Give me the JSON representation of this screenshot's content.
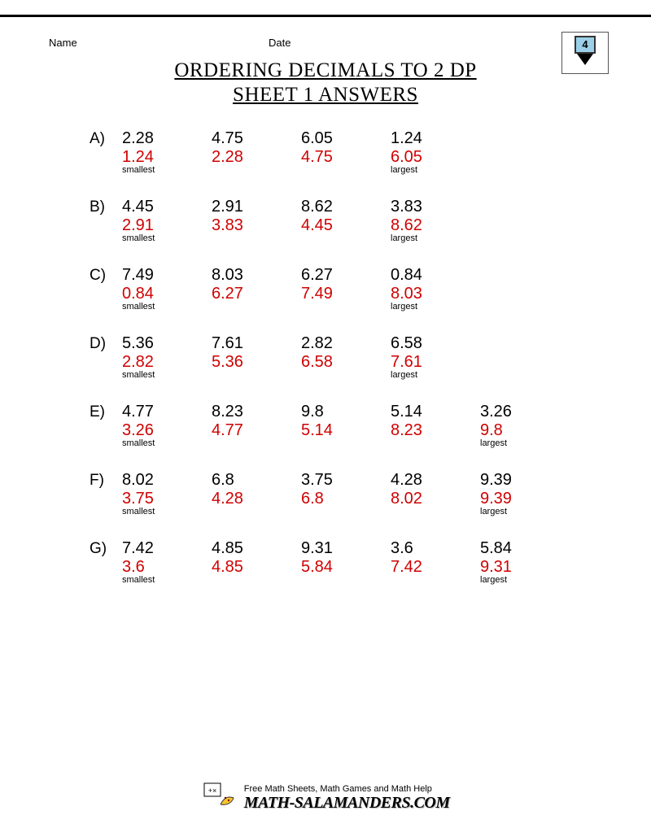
{
  "header": {
    "name_label": "Name",
    "date_label": "Date",
    "grade_number": "4"
  },
  "title_line1": "ORDERING DECIMALS TO 2 DP",
  "title_line2": "SHEET 1 ANSWERS",
  "colors": {
    "text": "#000000",
    "answer": "#d00000",
    "rule": "#000000",
    "badge_board": "#9bd0e8"
  },
  "smallest_label": "smallest",
  "largest_label": "largest",
  "problems": [
    {
      "label": "A)",
      "given": [
        "2.28",
        "4.75",
        "6.05",
        "1.24"
      ],
      "answer": [
        "1.24",
        "2.28",
        "4.75",
        "6.05"
      ]
    },
    {
      "label": "B)",
      "given": [
        "4.45",
        "2.91",
        "8.62",
        "3.83"
      ],
      "answer": [
        "2.91",
        "3.83",
        "4.45",
        "8.62"
      ]
    },
    {
      "label": "C)",
      "given": [
        "7.49",
        "8.03",
        "6.27",
        "0.84"
      ],
      "answer": [
        "0.84",
        "6.27",
        "7.49",
        "8.03"
      ]
    },
    {
      "label": "D)",
      "given": [
        "5.36",
        "7.61",
        "2.82",
        "6.58"
      ],
      "answer": [
        "2.82",
        "5.36",
        "6.58",
        "7.61"
      ]
    },
    {
      "label": "E)",
      "given": [
        "4.77",
        "8.23",
        "9.8",
        "5.14",
        "3.26"
      ],
      "answer": [
        "3.26",
        "4.77",
        "5.14",
        "8.23",
        "9.8"
      ]
    },
    {
      "label": "F)",
      "given": [
        "8.02",
        "6.8",
        "3.75",
        "4.28",
        "9.39"
      ],
      "answer": [
        "3.75",
        "4.28",
        "6.8",
        "8.02",
        "9.39"
      ]
    },
    {
      "label": "G)",
      "given": [
        "7.42",
        "4.85",
        "9.31",
        "3.6",
        "5.84"
      ],
      "answer": [
        "3.6",
        "4.85",
        "5.84",
        "7.42",
        "9.31"
      ]
    }
  ],
  "footer": {
    "tagline": "Free Math Sheets, Math Games and Math Help",
    "brand": "MATH-SALAMANDERS.COM"
  }
}
